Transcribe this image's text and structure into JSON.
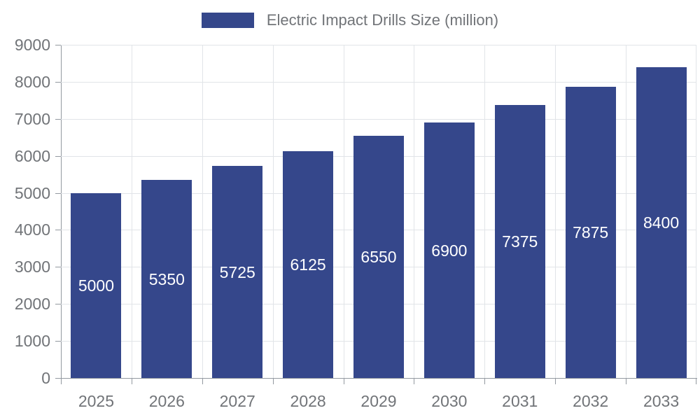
{
  "chart_data": {
    "type": "bar",
    "legend": "Electric Impact Drills Size (million)",
    "categories": [
      "2025",
      "2026",
      "2027",
      "2028",
      "2029",
      "2030",
      "2031",
      "2032",
      "2033"
    ],
    "values": [
      5000,
      5350,
      5725,
      6125,
      6550,
      6900,
      7375,
      7875,
      8400
    ],
    "value_labels": [
      "5000",
      "5350",
      "5725",
      "6125",
      "6550",
      "6900",
      "7375",
      "7875",
      "8400"
    ],
    "title": "",
    "xlabel": "",
    "ylabel": "",
    "ylim": [
      0,
      9000
    ],
    "ytick_step": 1000,
    "ytick_labels": [
      "0",
      "1000",
      "2000",
      "3000",
      "4000",
      "5000",
      "6000",
      "7000",
      "8000",
      "9000"
    ],
    "grid": true,
    "legend_position": "top-center",
    "colors": {
      "bar": "#35478B",
      "value_label": "#FFFFFF",
      "axis_text": "#717478",
      "gridline": "#E1E4E8",
      "axis_line": "#9399A0",
      "background": "#FFFFFF"
    }
  }
}
